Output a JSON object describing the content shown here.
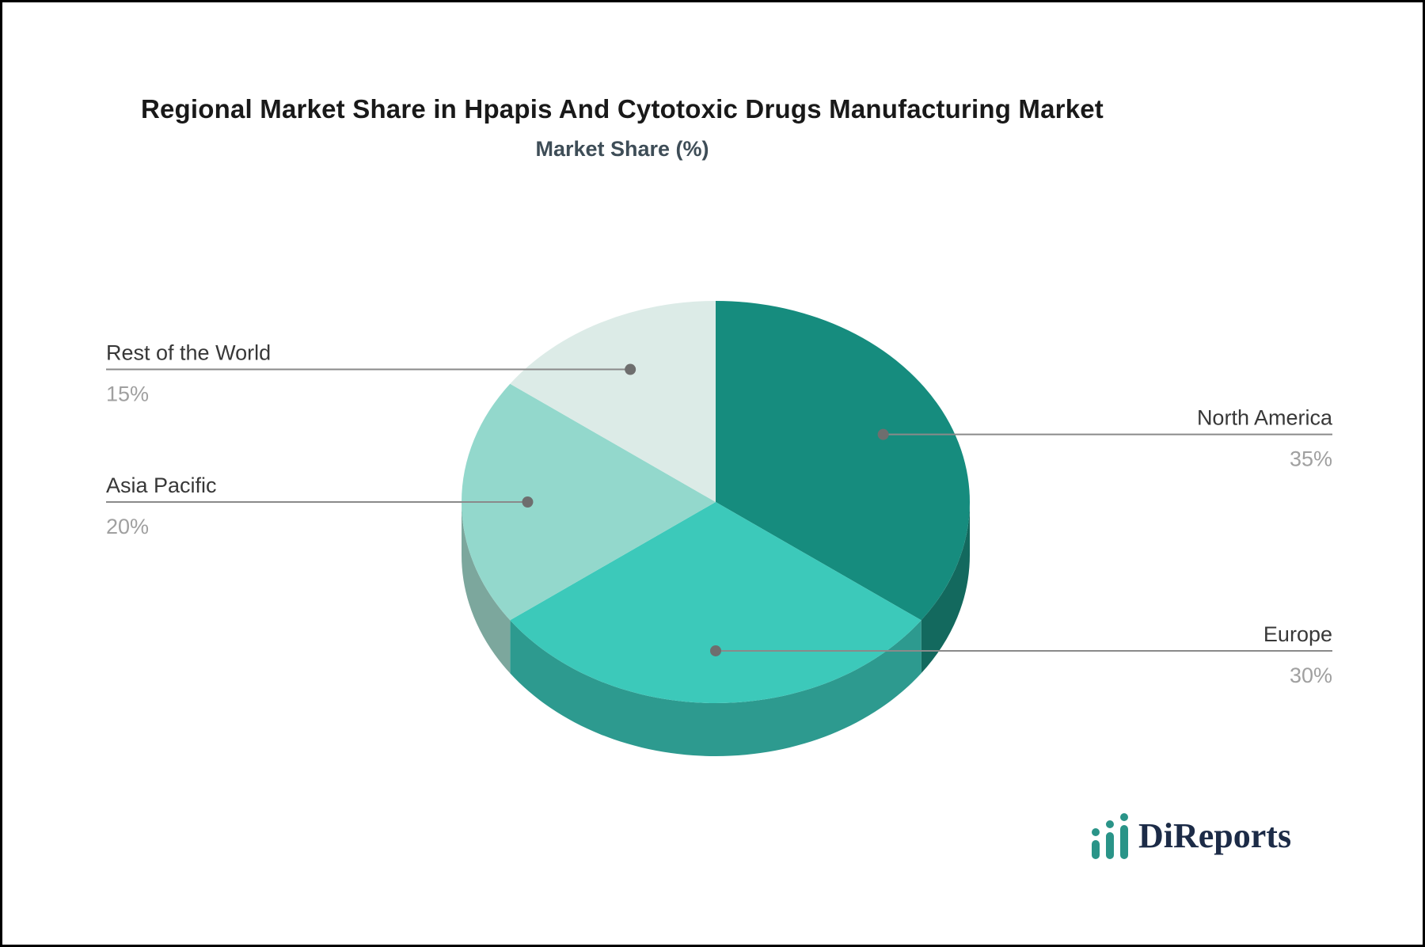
{
  "title": "Regional Market Share in Hpapis And Cytotoxic Drugs Manufacturing Market",
  "subtitle": "Market Share (%)",
  "logo": {
    "text": "DiReports",
    "icon": "bar-chart-icon",
    "icon_color": "#2a9488",
    "text_color": "#1c2b47"
  },
  "chart_data": {
    "type": "pie",
    "title": "Regional Market Share in Hpapis And Cytotoxic Drugs Manufacturing Market",
    "subtitle": "Market Share (%)",
    "unit": "%",
    "style": "3d-pie",
    "start_angle_deg": 90,
    "direction": "clockwise",
    "legend": "none",
    "label_position": "callout",
    "categories": [
      "North America",
      "Europe",
      "Asia Pacific",
      "Rest of the World"
    ],
    "values": [
      35,
      30,
      20,
      15
    ],
    "slices": [
      {
        "label": "North America",
        "value": 35,
        "pct_label": "35%",
        "color": "#168c7e",
        "side_color": "#13695e"
      },
      {
        "label": "Europe",
        "value": 30,
        "pct_label": "30%",
        "color": "#3cc9ba",
        "side_color": "#2d9a8f"
      },
      {
        "label": "Asia Pacific",
        "value": 20,
        "pct_label": "20%",
        "color": "#93d8cc",
        "side_color": "#7ca79d"
      },
      {
        "label": "Rest of the World",
        "value": 15,
        "pct_label": "15%",
        "color": "#dcebe7",
        "side_color": "#b9cfc9"
      }
    ],
    "callout_style": {
      "line_color": "#8a8a8a",
      "dot_color": "#6e6e6e",
      "label_color": "#383838",
      "pct_color": "#a0a0a0"
    }
  }
}
